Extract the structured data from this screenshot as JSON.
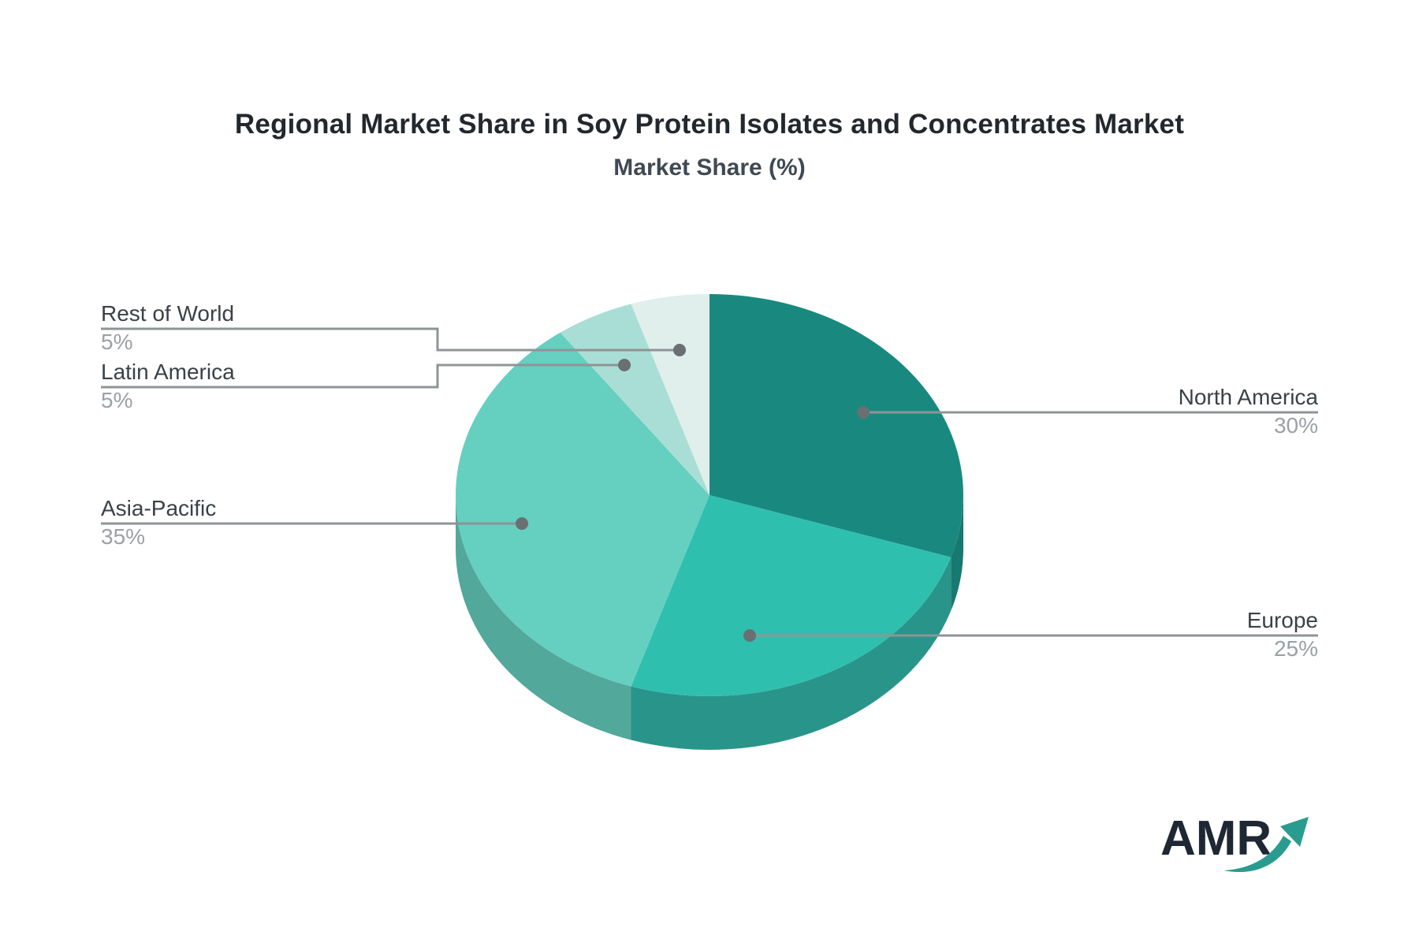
{
  "title": "Regional Market Share in Soy Protein Isolates and Concentrates Market",
  "subtitle": "Market Share (%)",
  "logo": {
    "text": "AMR"
  },
  "chart_data": {
    "type": "pie",
    "title": "Regional Market Share in Soy Protein Isolates and Concentrates Market",
    "subtitle": "Market Share (%)",
    "unit": "%",
    "effect": "3d",
    "start_angle_deg": 0,
    "direction": "clockwise",
    "labels": [
      "North America",
      "Europe",
      "Asia-Pacific",
      "Latin America",
      "Rest of World"
    ],
    "values": [
      30,
      25,
      35,
      5,
      5
    ],
    "display_values": [
      "30%",
      "25%",
      "35%",
      "5%",
      "5%"
    ],
    "colors": [
      "#19897f",
      "#2fbfae",
      "#65cfc0",
      "#a9ded6",
      "#e0eeec"
    ],
    "side_colors": [
      "#17796f",
      "#29958a",
      "#52a89a",
      "#8fc9c0",
      "#c5dcd9"
    ],
    "leader_line_color": "#8f9496",
    "leader_dot_color": "#6a6f72",
    "legend_position": "callout-labels"
  }
}
